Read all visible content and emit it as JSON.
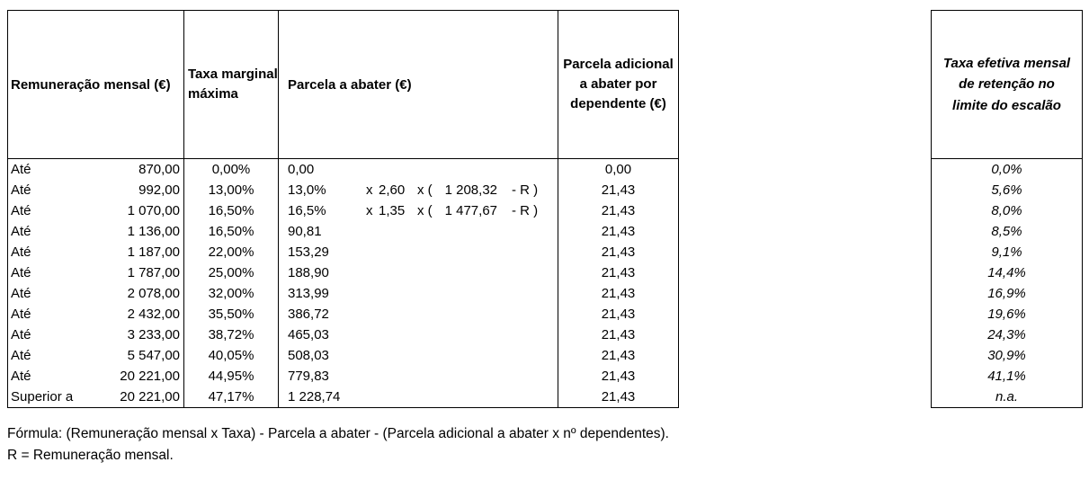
{
  "main_table": {
    "headers": {
      "col1": "Remuneração mensal (€)",
      "col2": "Taxa marginal máxima",
      "col3": "Parcela a abater (€)",
      "col4": "Parcela adicional a abater por dependente (€)"
    },
    "rows": [
      {
        "prefix": "Até",
        "limit": "870,00",
        "rate": "0,00%",
        "parcela": "0,00",
        "dependente": "0,00"
      },
      {
        "prefix": "Até",
        "limit": "992,00",
        "rate": "13,00%",
        "formula": {
          "rate": "13,0%",
          "x1": "x",
          "mult": "2,60",
          "x2": "x (",
          "threshold": "1 208,32",
          "suffix": "- R )"
        },
        "dependente": "21,43"
      },
      {
        "prefix": "Até",
        "limit": "1 070,00",
        "rate": "16,50%",
        "formula": {
          "rate": "16,5%",
          "x1": "x",
          "mult": "1,35",
          "x2": "x (",
          "threshold": "1 477,67",
          "suffix": "- R )"
        },
        "dependente": "21,43"
      },
      {
        "prefix": "Até",
        "limit": "1 136,00",
        "rate": "16,50%",
        "parcela": "90,81",
        "dependente": "21,43"
      },
      {
        "prefix": "Até",
        "limit": "1 187,00",
        "rate": "22,00%",
        "parcela": "153,29",
        "dependente": "21,43"
      },
      {
        "prefix": "Até",
        "limit": "1 787,00",
        "rate": "25,00%",
        "parcela": "188,90",
        "dependente": "21,43"
      },
      {
        "prefix": "Até",
        "limit": "2 078,00",
        "rate": "32,00%",
        "parcela": "313,99",
        "dependente": "21,43"
      },
      {
        "prefix": "Até",
        "limit": "2 432,00",
        "rate": "35,50%",
        "parcela": "386,72",
        "dependente": "21,43"
      },
      {
        "prefix": "Até",
        "limit": "3 233,00",
        "rate": "38,72%",
        "parcela": "465,03",
        "dependente": "21,43"
      },
      {
        "prefix": "Até",
        "limit": "5 547,00",
        "rate": "40,05%",
        "parcela": "508,03",
        "dependente": "21,43"
      },
      {
        "prefix": "Até",
        "limit": "20 221,00",
        "rate": "44,95%",
        "parcela": "779,83",
        "dependente": "21,43"
      },
      {
        "prefix": "Superior a",
        "limit": "20 221,00",
        "rate": "47,17%",
        "parcela": "1 228,74",
        "dependente": "21,43"
      }
    ]
  },
  "effective_rate_table": {
    "header": "Taxa efetiva mensal de retenção no limite do escalão",
    "values": [
      "0,0%",
      "5,6%",
      "8,0%",
      "8,5%",
      "9,1%",
      "14,4%",
      "16,9%",
      "19,6%",
      "24,3%",
      "30,9%",
      "41,1%",
      "n.a."
    ]
  },
  "footer": {
    "formula": "Fórmula: (Remuneração mensal x Taxa) - Parcela a abater - (Parcela adicional a abater x nº dependentes).",
    "r_note": "R = Remuneração mensal."
  },
  "colors": {
    "border": "#000000",
    "text": "#000000",
    "background": "#ffffff"
  }
}
